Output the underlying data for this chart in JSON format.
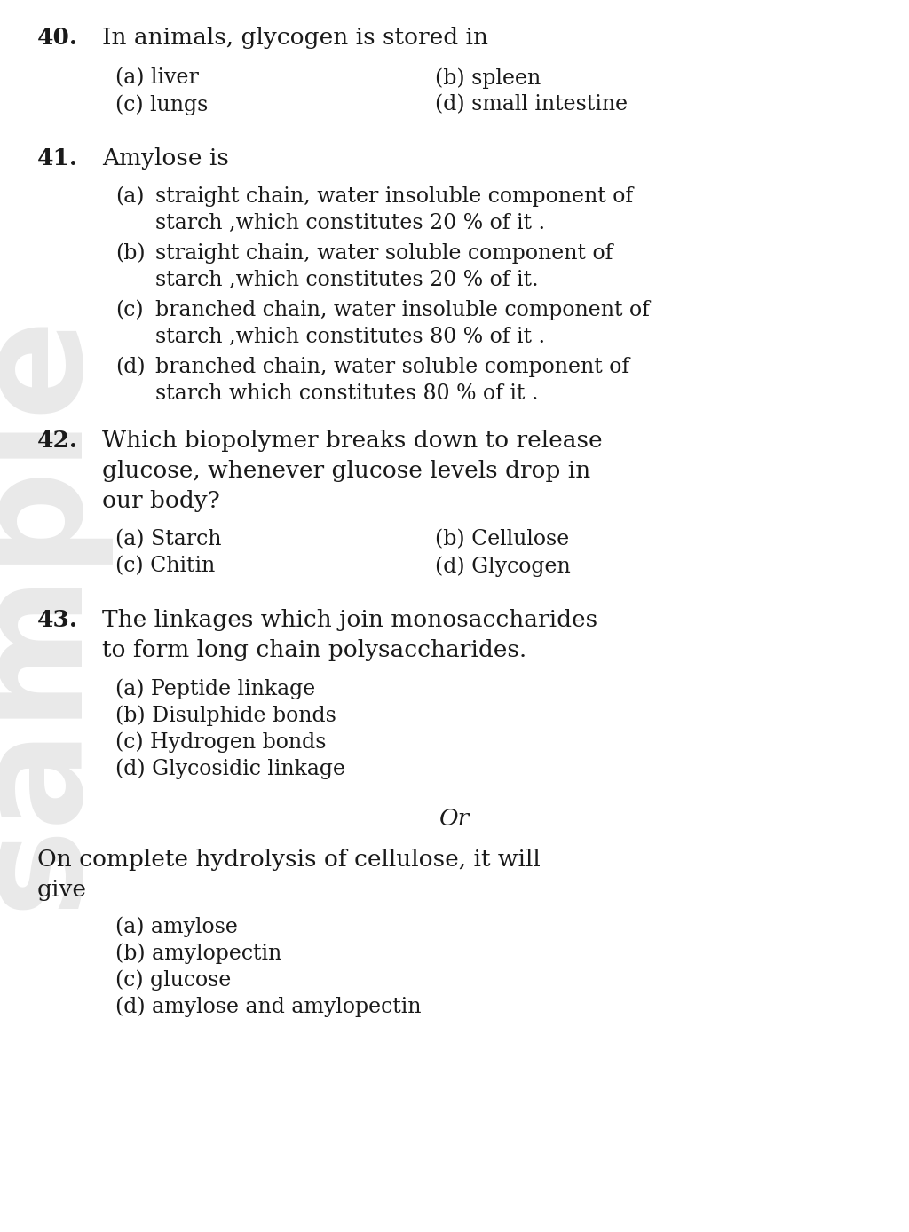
{
  "background_color": "#ffffff",
  "questions": [
    {
      "number": "40.",
      "question": "In animals, glycogen is stored in",
      "options_two_col": true,
      "options": [
        [
          "(a) liver",
          "(b) spleen"
        ],
        [
          "(c) lungs",
          "(d) small intestine"
        ]
      ]
    },
    {
      "number": "41.",
      "question": "Amylose is",
      "options_two_col": false,
      "options_list": [
        {
          "label": "(a)",
          "line1": "straight chain, water insoluble component of",
          "line2": "starch ,which constitutes 20 % of it ."
        },
        {
          "label": "(b)",
          "line1": "straight chain, water soluble component of",
          "line2": "starch ,which constitutes 20 % of it."
        },
        {
          "label": "(c)",
          "line1": "branched chain, water insoluble component of",
          "line2": "starch ,which constitutes 80 % of it ."
        },
        {
          "label": "(d)",
          "line1": "branched chain, water soluble component of",
          "line2": "starch which constitutes 80 % of it ."
        }
      ]
    },
    {
      "number": "42.",
      "question_lines": [
        "Which biopolymer breaks down to release",
        "glucose, whenever glucose levels drop in",
        "our body?"
      ],
      "options_two_col": true,
      "options": [
        [
          "(a) Starch",
          "(b) Cellulose"
        ],
        [
          "(c) Chitin",
          "(d) Glycogen"
        ]
      ]
    },
    {
      "number": "43.",
      "question_lines": [
        "The linkages which join monosaccharides",
        "to form long chain polysaccharides."
      ],
      "options_two_col": false,
      "options_list_simple": [
        "(a) Peptide linkage",
        "(b) Disulphide bonds",
        "(c) Hydrogen bonds",
        "(d) Glycosidic linkage"
      ],
      "or_section": true,
      "or_question_lines": [
        "On complete hydrolysis of cellulose, it will",
        "give"
      ],
      "or_options": [
        "(a) amylose",
        "(b) amylopectin",
        "(c) glucose",
        "(d) amylose and amylopectin"
      ]
    }
  ],
  "font_size_qnum": 19,
  "font_size_qtext": 19,
  "font_size_opt": 17,
  "font_size_or": 19,
  "text_color": "#1a1a1a",
  "watermark_color": "#c8c8c8",
  "watermark_alpha": 0.4,
  "watermark_size": 120
}
